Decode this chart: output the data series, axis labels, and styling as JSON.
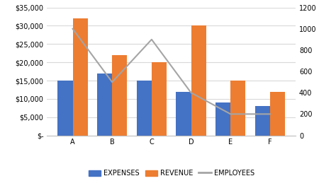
{
  "categories": [
    "A",
    "B",
    "C",
    "D",
    "E",
    "F"
  ],
  "expenses": [
    15000,
    17000,
    15000,
    12000,
    9000,
    8000
  ],
  "revenue": [
    32000,
    22000,
    20000,
    30000,
    15000,
    12000
  ],
  "employees": [
    1000,
    500,
    900,
    400,
    200,
    200
  ],
  "bar_color_expenses": "#4472C4",
  "bar_color_revenue": "#ED7D31",
  "line_color_employees": "#A5A5A5",
  "left_ylim": [
    0,
    35000
  ],
  "right_ylim": [
    0,
    1200
  ],
  "left_yticks": [
    0,
    5000,
    10000,
    15000,
    20000,
    25000,
    30000,
    35000
  ],
  "right_yticks": [
    0,
    200,
    400,
    600,
    800,
    1000,
    1200
  ],
  "background_color": "#FFFFFF",
  "grid_color": "#D9D9D9",
  "legend_labels": [
    "EXPENSES",
    "REVENUE",
    "EMPLOYEES"
  ],
  "bar_width": 0.38,
  "tick_fontsize": 7.0,
  "legend_fontsize": 7.0
}
